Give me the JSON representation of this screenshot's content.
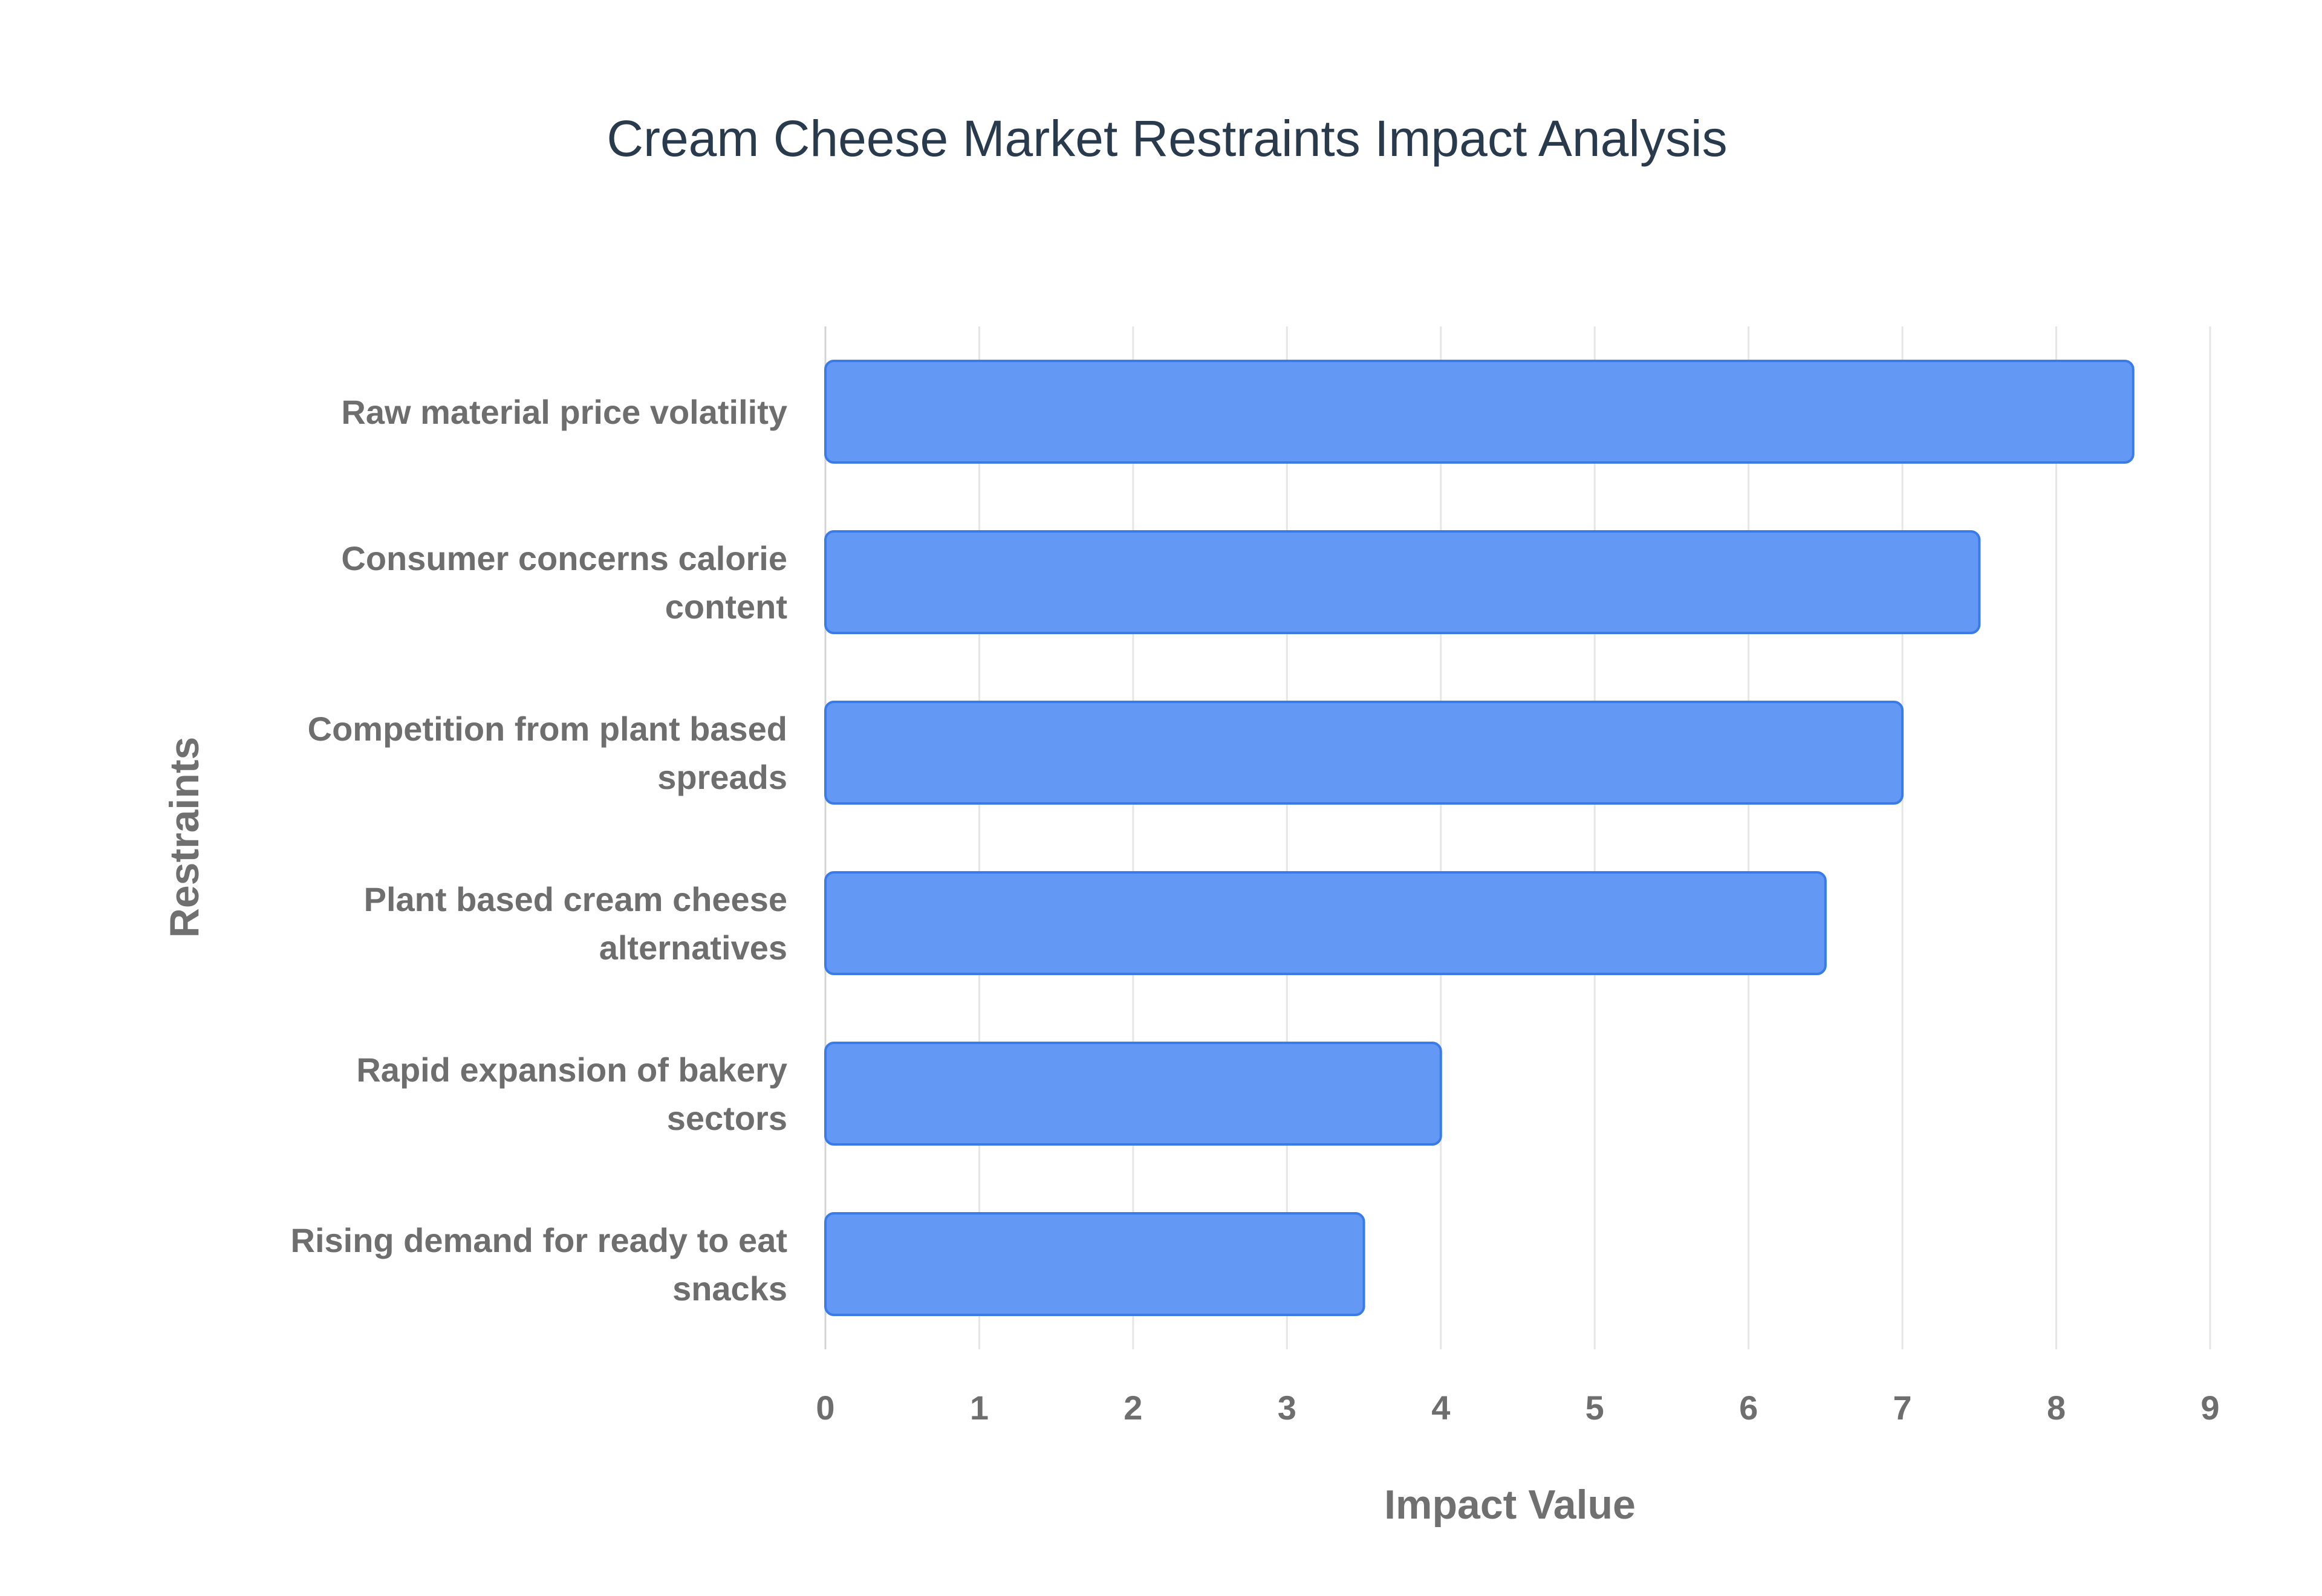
{
  "chart_data": {
    "type": "bar",
    "orientation": "horizontal",
    "title": "Cream Cheese Market Restraints Impact Analysis",
    "xlabel": "Impact Value",
    "ylabel": "Restraints",
    "xlim": [
      0,
      9
    ],
    "xticks": [
      "0",
      "1",
      "2",
      "3",
      "4",
      "5",
      "6",
      "7",
      "8",
      "9"
    ],
    "grid": true,
    "legend": "none",
    "bar_color": "#6399f4",
    "bar_border_color": "#3b7be8",
    "categories": [
      [
        "Raw material price volatility"
      ],
      [
        "Consumer concerns calorie",
        "content"
      ],
      [
        "Competition from plant based",
        "spreads"
      ],
      [
        "Plant based cream cheese",
        "alternatives"
      ],
      [
        "Rapid expansion of bakery",
        "sectors"
      ],
      [
        "Rising demand for ready to eat",
        "snacks"
      ]
    ],
    "values": [
      8.5,
      7.5,
      7.0,
      6.5,
      4.0,
      3.5
    ]
  }
}
